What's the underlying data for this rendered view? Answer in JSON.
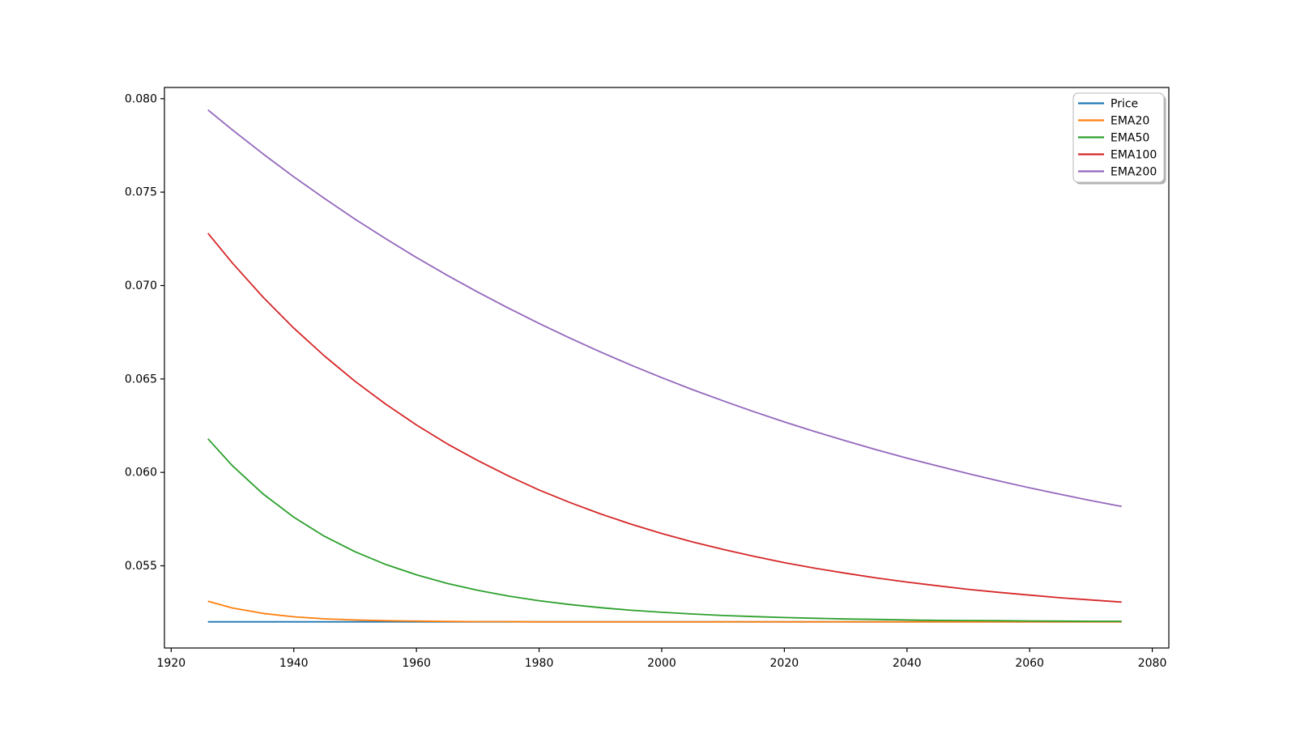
{
  "figure": {
    "background": "#ffffff",
    "title": ""
  },
  "chart_data": {
    "type": "line",
    "title": "",
    "xlabel": "",
    "ylabel": "",
    "grid": false,
    "axis_color": "#000000",
    "tick_label_color": "#000000",
    "xlim": [
      1918.9,
      2082.7
    ],
    "ylim": [
      0.0506,
      0.0806
    ],
    "xticks": [
      1920,
      1940,
      1960,
      1980,
      2000,
      2020,
      2040,
      2060,
      2080
    ],
    "xtick_labels": [
      "1920",
      "1940",
      "1960",
      "1980",
      "2000",
      "2020",
      "2040",
      "2060",
      "2080"
    ],
    "yticks": [
      0.055,
      0.06,
      0.065,
      0.07,
      0.075,
      0.08
    ],
    "ytick_labels": [
      "0.055",
      "0.060",
      "0.065",
      "0.070",
      "0.075",
      "0.080"
    ],
    "x": [
      1926,
      1930,
      1935,
      1940,
      1945,
      1950,
      1955,
      1960,
      1965,
      1970,
      1975,
      1980,
      1985,
      1990,
      1995,
      2000,
      2005,
      2010,
      2015,
      2020,
      2025,
      2030,
      2035,
      2040,
      2045,
      2050,
      2055,
      2060,
      2065,
      2070,
      2075
    ],
    "series": [
      {
        "name": "Price",
        "color": "#1f77b4",
        "values": [
          0.052,
          0.052,
          0.052,
          0.052,
          0.052,
          0.052,
          0.052,
          0.052,
          0.052,
          0.052,
          0.052,
          0.052,
          0.052,
          0.052,
          0.052,
          0.052,
          0.052,
          0.052,
          0.052,
          0.052,
          0.052,
          0.052,
          0.052,
          0.052,
          0.052,
          0.052,
          0.052,
          0.052,
          0.052,
          0.052,
          0.052
        ]
      },
      {
        "name": "EMA20",
        "color": "#ff7f0e",
        "values": [
          0.0531,
          0.05274,
          0.05245,
          0.05227,
          0.05216,
          0.0521,
          0.05206,
          0.05204,
          0.05202,
          0.05201,
          0.05201,
          0.052,
          0.052,
          0.052,
          0.052,
          0.052,
          0.052,
          0.052,
          0.052,
          0.052,
          0.052,
          0.052,
          0.052,
          0.052,
          0.052,
          0.052,
          0.052,
          0.052,
          0.052,
          0.052,
          0.052
        ]
      },
      {
        "name": "EMA50",
        "color": "#2ca02c",
        "values": [
          0.0618,
          0.06035,
          0.05884,
          0.0576,
          0.05658,
          0.05575,
          0.05507,
          0.05452,
          0.05406,
          0.05369,
          0.05338,
          0.05313,
          0.05293,
          0.05276,
          0.05262,
          0.05251,
          0.05242,
          0.05234,
          0.05228,
          0.05223,
          0.05219,
          0.05215,
          0.05213,
          0.0521,
          0.05208,
          0.05207,
          0.05206,
          0.05205,
          0.05204,
          0.05203,
          0.05203
        ]
      },
      {
        "name": "EMA100",
        "color": "#d62728",
        "values": [
          0.0728,
          0.0712,
          0.06937,
          0.06772,
          0.06623,
          0.06487,
          0.06365,
          0.06254,
          0.06153,
          0.06063,
          0.05981,
          0.05906,
          0.05839,
          0.05778,
          0.05723,
          0.05673,
          0.05628,
          0.05588,
          0.05551,
          0.05517,
          0.05487,
          0.0546,
          0.05435,
          0.05413,
          0.05393,
          0.05374,
          0.05358,
          0.05343,
          0.05329,
          0.05317,
          0.05306
        ]
      },
      {
        "name": "EMA200",
        "color": "#9467bd",
        "values": [
          0.0794,
          0.07833,
          0.07704,
          0.07582,
          0.07466,
          0.07355,
          0.0725,
          0.0715,
          0.07055,
          0.06965,
          0.06879,
          0.06797,
          0.06719,
          0.06645,
          0.06574,
          0.06507,
          0.06443,
          0.06383,
          0.06325,
          0.0627,
          0.06218,
          0.06169,
          0.06121,
          0.06076,
          0.06034,
          0.05993,
          0.05954,
          0.05917,
          0.05883,
          0.05849,
          0.05818
        ]
      }
    ],
    "legend": {
      "position": "upper right",
      "entries": [
        "Price",
        "EMA20",
        "EMA50",
        "EMA100",
        "EMA200"
      ],
      "frame_color": "#b5b5b5",
      "background": "#ffffff",
      "shadow_color": "#808080"
    }
  }
}
